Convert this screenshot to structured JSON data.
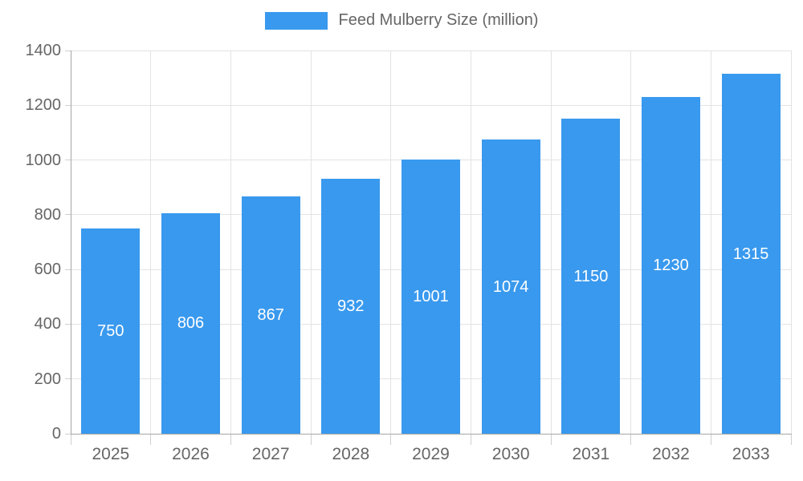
{
  "chart_data": {
    "type": "bar",
    "series_label": "Feed Mulberry Size (million)",
    "categories": [
      "2025",
      "2026",
      "2027",
      "2028",
      "2029",
      "2030",
      "2031",
      "2032",
      "2033"
    ],
    "values": [
      750,
      806,
      867,
      932,
      1001,
      1074,
      1150,
      1230,
      1315
    ],
    "title": "",
    "xlabel": "",
    "ylabel": "",
    "ylim": [
      0,
      1400
    ],
    "ytick_step": 200,
    "ytick_labels": [
      "0",
      "200",
      "400",
      "600",
      "800",
      "1000",
      "1200",
      "1400"
    ],
    "grid": true,
    "legend_position": "top",
    "bar_color": "#3999ee",
    "bar_label_color": "#ffffff",
    "axis_text_color": "#666666"
  }
}
